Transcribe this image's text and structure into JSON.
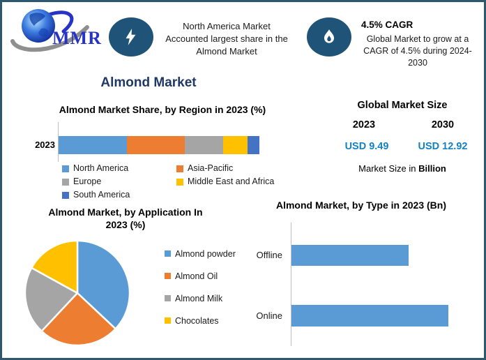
{
  "frame": {
    "border_color": "#2E5770",
    "background": "#FFFFFF"
  },
  "header": {
    "logo_text": "MMR",
    "icon_bg": "#1F5377",
    "note_left": {
      "icon": "lightning-icon",
      "text": "North America Market\nAccounted largest share in the\nAlmond Market"
    },
    "note_right": {
      "icon": "flame-icon",
      "title": "4.5% CAGR",
      "text": "Global Market to grow at a\nCAGR of 4.5% during 2024-\n2030"
    }
  },
  "main_title": "Almond Market",
  "market_size_panel": {
    "title": "Global Market Size",
    "years": [
      "2023",
      "2030"
    ],
    "values": [
      "USD 9.49",
      "USD 12.92"
    ],
    "value_color": "#1381C5",
    "note_prefix": "Market Size in ",
    "note_bold": "Billion"
  },
  "chart_data": [
    {
      "type": "bar",
      "subtype": "stacked-horizontal-100pct",
      "title": "Almond Market Share, by Region in 2023 (%)",
      "categories": [
        "2023"
      ],
      "unit": "%",
      "xlim": [
        0,
        100
      ],
      "legend_position": "bottom",
      "series": [
        {
          "name": "North America",
          "value": 34,
          "color": "#5B9BD5"
        },
        {
          "name": "Asia-Pacific",
          "value": 29,
          "color": "#ED7D31"
        },
        {
          "name": "Europe",
          "value": 19,
          "color": "#A5A5A5"
        },
        {
          "name": "Middle East and Africa",
          "value": 12,
          "color": "#FFC000"
        },
        {
          "name": "South America",
          "value": 6,
          "color": "#4472C4"
        }
      ]
    },
    {
      "type": "pie",
      "title": "Almond Market, by Application In\n2023 (%)",
      "legend_position": "right",
      "start_angle_deg": 0,
      "slices": [
        {
          "name": "Almond powder",
          "value": 37,
          "color": "#5B9BD5"
        },
        {
          "name": "Almond Oil",
          "value": 25,
          "color": "#ED7D31"
        },
        {
          "name": "Almond Milk",
          "value": 21,
          "color": "#A5A5A5"
        },
        {
          "name": "Chocolates",
          "value": 17,
          "color": "#FFC000"
        }
      ]
    },
    {
      "type": "bar",
      "subtype": "horizontal",
      "title": "Almond Market, by Type in 2023 (Bn)",
      "categories": [
        "Offline",
        "Online"
      ],
      "values": [
        4.05,
        5.44
      ],
      "unit": "Bn",
      "xlim": [
        0,
        6.6
      ],
      "bar_color": "#5B9BD5",
      "grid": false
    }
  ]
}
